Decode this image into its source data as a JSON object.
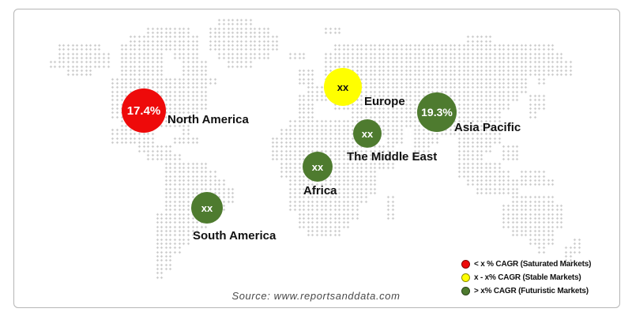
{
  "map": {
    "markers": [
      {
        "id": "north-america",
        "label": "North America",
        "value": "17.4%",
        "color": "#ee0a0a",
        "text_color": "#ffffff"
      },
      {
        "id": "europe",
        "label": "Europe",
        "value": "xx",
        "color": "#ffff00",
        "text_color": "#111111"
      },
      {
        "id": "asia-pacific",
        "label": "Asia Pacific",
        "value": "19.3%",
        "color": "#4e7b2f",
        "text_color": "#ffffff"
      },
      {
        "id": "middle-east",
        "label": "The Middle East",
        "value": "xx",
        "color": "#4e7b2f",
        "text_color": "#ffffff"
      },
      {
        "id": "africa",
        "label": "Africa",
        "value": "xx",
        "color": "#4e7b2f",
        "text_color": "#ffffff"
      },
      {
        "id": "south-america",
        "label": "South America",
        "value": "xx",
        "color": "#4e7b2f",
        "text_color": "#ffffff"
      }
    ]
  },
  "legend": {
    "items": [
      {
        "color": "#ee0a0a",
        "label": "< x % CAGR (Saturated Markets)"
      },
      {
        "color": "#ffff00",
        "label": "x - x% CAGR (Stable Markets)"
      },
      {
        "color": "#4e7b2f",
        "label": "> x% CAGR (Futuristic Markets)"
      }
    ]
  },
  "source": {
    "text": "Source: www.reportsanddata.com"
  },
  "colors": {
    "saturated_red": "#ee0a0a",
    "stable_yellow": "#ffff00",
    "futuristic_green": "#4e7b2f",
    "map_dot": "#c4c4c4",
    "panel_border": "#b6b6b6",
    "label_text": "#111111"
  }
}
